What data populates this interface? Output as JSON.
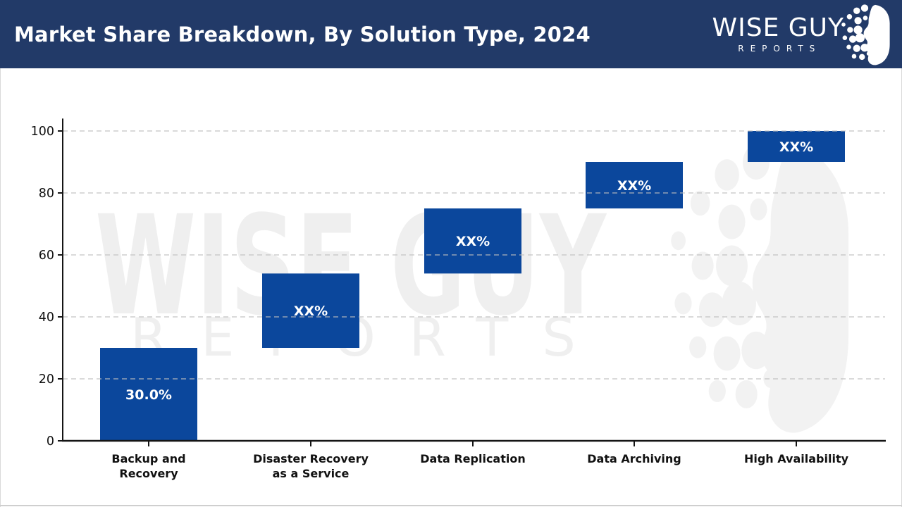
{
  "header": {
    "title": "Market Share Breakdown, By Solution Type, 2024",
    "bg_color": "#223a68",
    "logo": {
      "name": "WISE GUY",
      "subname": "REPORTS"
    }
  },
  "watermark": {
    "line1": "WISE GUY",
    "line2": "REPORTS"
  },
  "chart_data": {
    "type": "bar",
    "variant": "floating-waterfall",
    "title": "Market Share Breakdown, By Solution Type, 2024",
    "categories": [
      "Backup and\nRecovery",
      "Disaster Recovery\nas a Service",
      "Data Replication",
      "Data Archiving",
      "High Availability"
    ],
    "segments": [
      {
        "category": "Backup and Recovery",
        "start": 0,
        "end": 30,
        "label": "30.0%"
      },
      {
        "category": "Disaster Recovery as a Service",
        "start": 30,
        "end": 54,
        "label": "XX%"
      },
      {
        "category": "Data Replication",
        "start": 54,
        "end": 75,
        "label": "XX%"
      },
      {
        "category": "Data Archiving",
        "start": 75,
        "end": 90,
        "label": "XX%"
      },
      {
        "category": "High Availability",
        "start": 90,
        "end": 100,
        "label": "XX%"
      }
    ],
    "values": [
      30,
      24,
      21,
      15,
      10
    ],
    "yticks": [
      0,
      20,
      40,
      60,
      80,
      100
    ],
    "ylim": [
      0,
      104
    ],
    "xlabel": "",
    "ylabel": "",
    "grid": "horizontal-dashed",
    "legend": "none",
    "bar_color": "#0b479c",
    "bar_label_color": "#ffffff",
    "axis_color": "#141414",
    "grid_color": "rgba(190,190,190,0.65)",
    "watermark_color": "#efefef"
  }
}
